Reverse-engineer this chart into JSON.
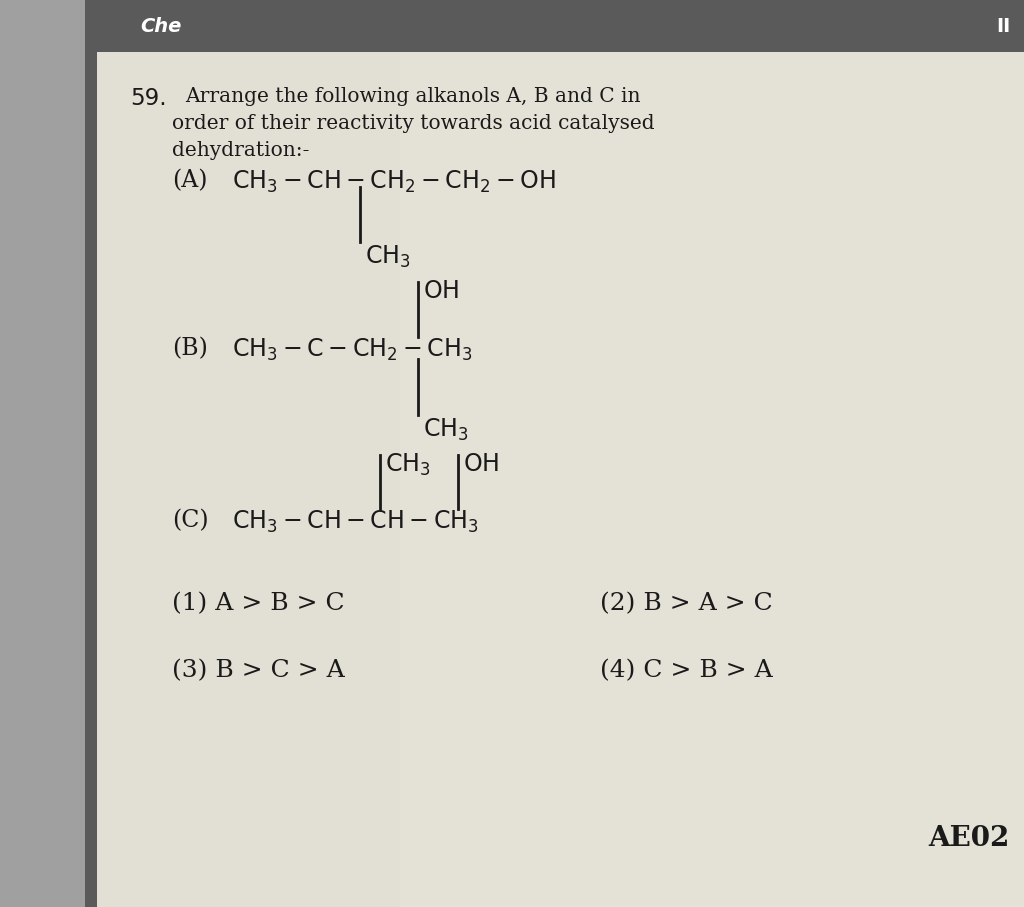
{
  "bg_outer": "#b0b0b0",
  "bg_page": "#dddbd0",
  "bg_page_right": "#e8e5da",
  "top_bar_color": "#5a5a5a",
  "text_color": "#1a1a1a",
  "header_left": "Che",
  "header_right": "II",
  "q_num": "59.",
  "q_line1": "Arrange the following alkanols A, B and C in",
  "q_line2": "order of their reactivity towards acid catalysed",
  "q_line3": "dehydration:-",
  "label_A": "(A)",
  "formula_A": "CH₃–CH–CH₂–CH₂–OH",
  "sub_A": "CH₃",
  "label_B": "(B)",
  "top_B": "OH",
  "formula_B": "CH₃–C–CH₂–CH₃",
  "sub_B": "CH₃",
  "label_C": "(C)",
  "top_C_left": "CH₃",
  "top_C_right": "OH",
  "formula_C": "CH₃–CH–CH–CH₃",
  "opt1": "(1) A > B > C",
  "opt2": "(2) B > A > C",
  "opt3": "(3) B > C > A",
  "opt4": "(4) C > B > A",
  "code": "AE02",
  "fs_q": 14.5,
  "fs_chem": 17,
  "fs_opt": 18,
  "fs_code": 20
}
